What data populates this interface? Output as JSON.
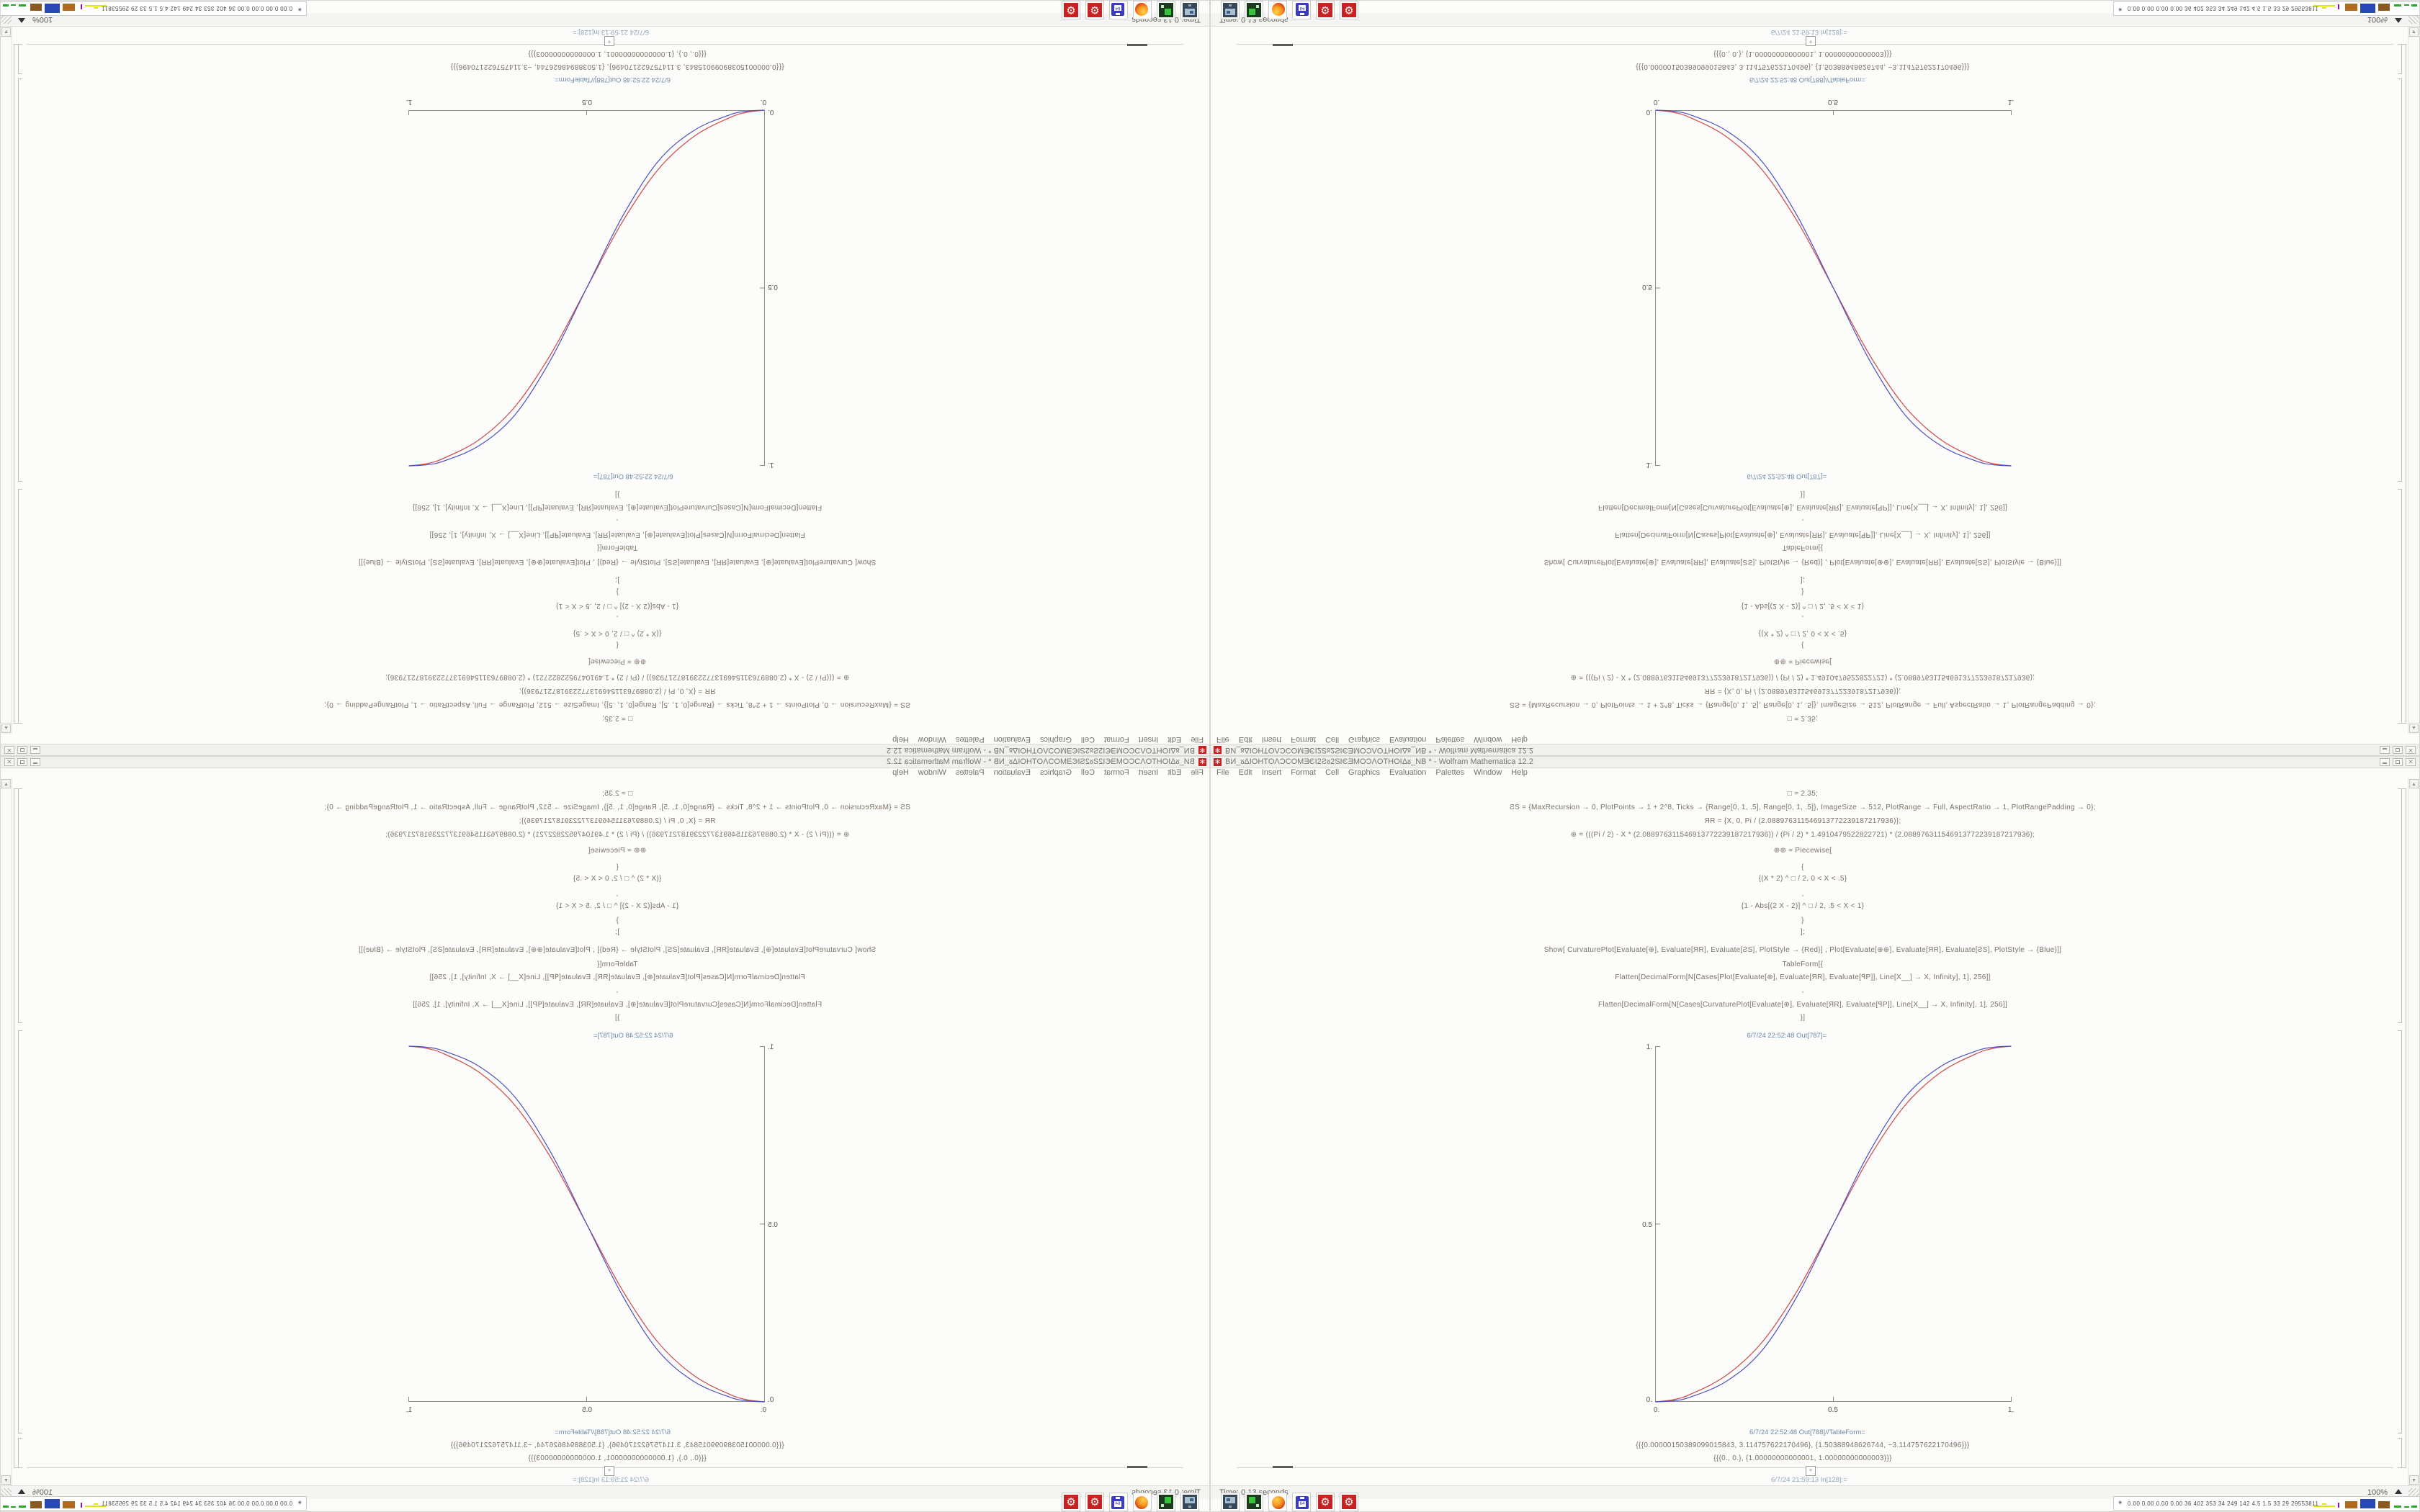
{
  "window": {
    "title": "ВИ_ᴕΔIOHTOΛƆCOMƎЄI2Ƨᴕ2ЅIЄƎMOƆΛOTHOIΔᴕ_NB * - Wolfram Mathematica 12.2",
    "menu": [
      "File",
      "Edit",
      "Insert",
      "Format",
      "Cell",
      "Graphics",
      "Evaluation",
      "Palettes",
      "Window",
      "Help"
    ],
    "controls": {
      "close_glyph": "✕"
    }
  },
  "notebook": {
    "code_lines": [
      "□ = 2.35;",
      "ƧS = {MaxRecursion → 0, PlotPoints → 1 + 2^8, Ticks → {Range[0, 1, .5], Range[0, 1, .5]}, ImageSize → 512, PlotRange → Full, AspectRatio → 1, PlotRangePadding → 0};",
      "ЯR = {X, 0, Pi / (2.088976311546913772239187217936)};",
      "⊕ = (((Pi / 2) - X * (2.088976311546913772239187217936)) / (Pi / 2) * 1.4910479522822721) * (2.088976311546913772239187217936);",
      "⊕⊕ = Piecewise[",
      "{",
      "{(X * 2) ^ □ / 2, 0 < X < .5}",
      ",",
      "{1 - Abs[(2 X - 2)] ^ □ / 2, .5 < X < 1}",
      "}",
      "];",
      "Show[  CurvaturePlot[Evaluate[⊕], Evaluate[ЯR], Evaluate[ƧS], PlotStyle → {Red}]  ,  Plot[Evaluate[⊕⊕], Evaluate[ЯR], Evaluate[ƧS],  PlotStyle → {Blue}]]",
      "TableForm[{",
      "Flatten[DecimalForm[N[Cases[Plot[Evaluate[⊕], Evaluate[ЯR], Evaluate[ꟼP]], Line[X__] → X, Infinity], 1], 256]]",
      ",",
      "Flatten[DecimalForm[N[Cases[CurvaturePlot[Evaluate[⊕], Evaluate[ЯR], Evaluate[ꟼP]], Line[X__] → X, Infinity], 1], 256]]",
      "}]"
    ],
    "out1_label": "6/7/24 22:52:48 Out[787]=",
    "out2_label": "6/7/24 22:52:48 Out[788]//TableForm=",
    "result_lines": [
      "{{{0.00000150389099015843, 3.114757622170496}, {1.50388948626744, −3.114757622170496}}}",
      "{{{0., 0.}, {1.00000000000001, 1.00000000000003}}}"
    ],
    "pending_in_label": "6/7/24 21:59:13 In[128]:=",
    "insert_cell_glyph": "+"
  },
  "chart_data": {
    "type": "line",
    "title": "",
    "xlabel": "",
    "ylabel": "",
    "xlim": [
      0,
      1
    ],
    "ylim": [
      0,
      1
    ],
    "grid": false,
    "legend": "none",
    "x_ticks": [
      "0.",
      "0.5",
      "1."
    ],
    "y_ticks": [
      "0.",
      "0.5",
      "1."
    ],
    "series": [
      {
        "name": "CurvaturePlot ⊕ (Red)",
        "color": "#d05050",
        "points": [
          [
            0,
            0
          ],
          [
            0.05,
            0.006
          ],
          [
            0.1,
            0.022
          ],
          [
            0.2,
            0.075
          ],
          [
            0.3,
            0.168
          ],
          [
            0.4,
            0.315
          ],
          [
            0.5,
            0.5
          ],
          [
            0.6,
            0.685
          ],
          [
            0.7,
            0.832
          ],
          [
            0.8,
            0.925
          ],
          [
            0.9,
            0.978
          ],
          [
            0.95,
            0.994
          ],
          [
            1,
            1
          ]
        ]
      },
      {
        "name": "Plot ⊕⊕ (Blue)",
        "color": "#4a50c4",
        "points": [
          [
            0,
            0
          ],
          [
            0.05,
            0.003
          ],
          [
            0.1,
            0.014
          ],
          [
            0.2,
            0.058
          ],
          [
            0.3,
            0.145
          ],
          [
            0.4,
            0.3
          ],
          [
            0.5,
            0.5
          ],
          [
            0.6,
            0.7
          ],
          [
            0.7,
            0.855
          ],
          [
            0.8,
            0.942
          ],
          [
            0.9,
            0.986
          ],
          [
            0.95,
            0.997
          ],
          [
            1,
            1
          ]
        ]
      }
    ]
  },
  "status_bar": {
    "timing_text": "Time: 0.13 seconds",
    "magnification": "100%"
  },
  "taskbar": {
    "floppy_label": "64",
    "gear_glyph": "⚙",
    "system_monitor": {
      "prefix_glyph": "✶",
      "values_text": "0.00 0.00 0.00 0.00  36  402 353  34  249 142  4.5  1.5  33  29 29553811"
    }
  }
}
